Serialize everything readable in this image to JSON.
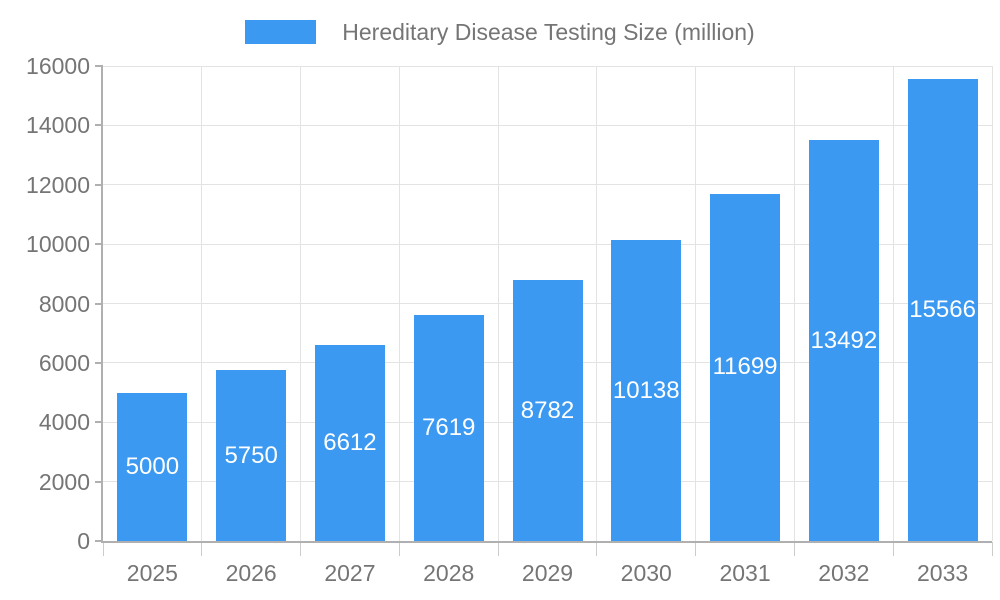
{
  "legend": {
    "label": "Hereditary Disease Testing Size (million)"
  },
  "chart_data": {
    "type": "bar",
    "title": "Hereditary Disease Testing Size (million)",
    "series_name": "Hereditary Disease Testing Size (million)",
    "categories": [
      "2025",
      "2026",
      "2027",
      "2028",
      "2029",
      "2030",
      "2031",
      "2032",
      "2033"
    ],
    "values": [
      5000,
      5750,
      6612,
      7619,
      8782,
      10138,
      11699,
      13492,
      15566
    ],
    "xlabel": "",
    "ylabel": "",
    "ylim": [
      0,
      16000
    ],
    "yticks": [
      0,
      2000,
      4000,
      6000,
      8000,
      10000,
      12000,
      14000,
      16000
    ],
    "grid": true,
    "legend_position": "top-center",
    "value_label_position": "centered-inside-bar",
    "colors": {
      "bar": "#3B99F2",
      "grid": "#e3e3e3",
      "axis": "#b0b0b0",
      "x_tick": "#cccccc",
      "y_tick": "#b0b0b0",
      "text": "#757575",
      "value_label": "#ffffff",
      "background": "#ffffff"
    }
  }
}
